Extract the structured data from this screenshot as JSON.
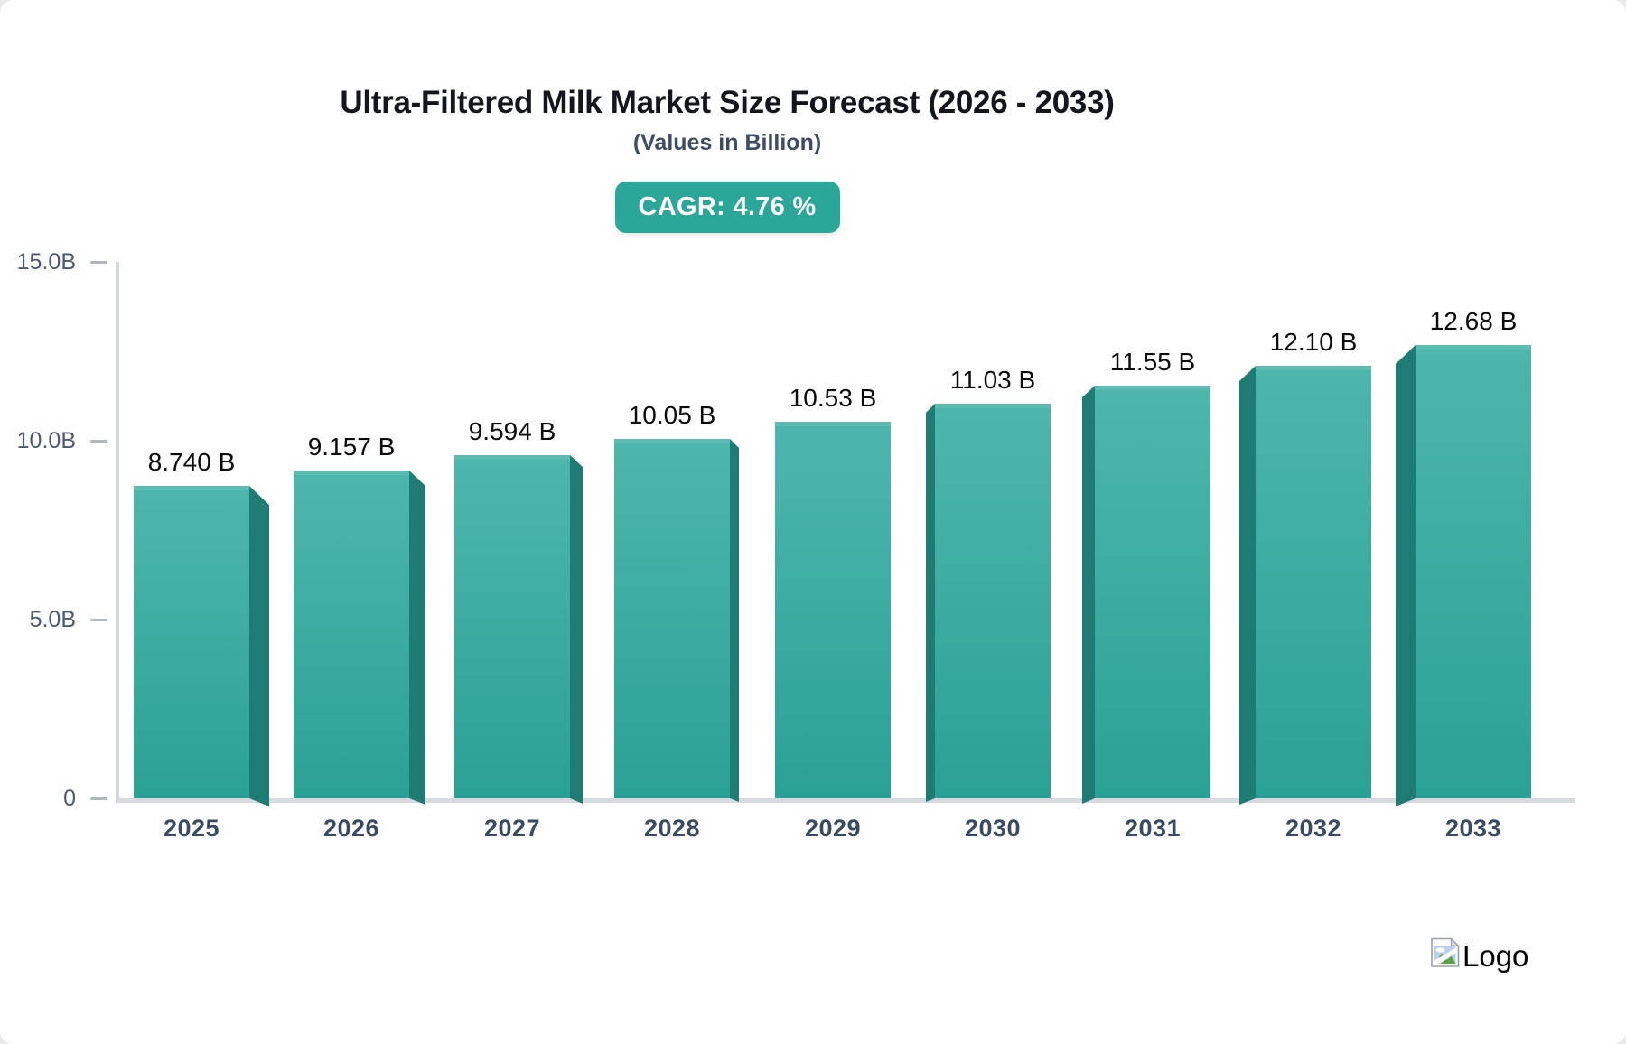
{
  "header": {
    "title": "Ultra-Filtered Milk Market Size Forecast (2026 - 2033)",
    "subtitle": "(Values in Billion)",
    "cagr_badge": "CAGR: 4.76 %"
  },
  "chart_data": {
    "type": "bar",
    "title": "Ultra-Filtered Milk Market Size Forecast (2026 - 2033)",
    "subtitle": "(Values in Billion)",
    "annotation": "CAGR: 4.76 %",
    "categories": [
      "2025",
      "2026",
      "2027",
      "2028",
      "2029",
      "2030",
      "2031",
      "2032",
      "2033"
    ],
    "values": [
      8.74,
      9.157,
      9.594,
      10.05,
      10.53,
      11.03,
      11.55,
      12.1,
      12.68
    ],
    "value_labels": [
      "8.740 B",
      "9.157 B",
      "9.594 B",
      "10.05 B",
      "10.53 B",
      "11.03 B",
      "11.55 B",
      "12.10 B",
      "12.68 B"
    ],
    "xlabel": "",
    "ylabel": "",
    "ylim": [
      0,
      15
    ],
    "yticks": [
      {
        "value": 15,
        "label": "15.0B"
      },
      {
        "value": 10,
        "label": "10.0B"
      },
      {
        "value": 5,
        "label": "5.0B"
      },
      {
        "value": 0,
        "label": "0"
      }
    ],
    "grid": false,
    "legend": null,
    "bar_style": "3d-perspective",
    "colors": {
      "bar_face_top": "#4db6ac",
      "bar_face_bottom": "#2aa195",
      "bar_top_edge": "#5cbcb1",
      "bar_side": "#1f7c74",
      "badge_background": "#2ba79a",
      "axis_line": "#d7dbdf",
      "tick_text": "#4d5a6e",
      "category_text": "#394a63"
    }
  },
  "footer": {
    "logo_alt": "Logo"
  }
}
